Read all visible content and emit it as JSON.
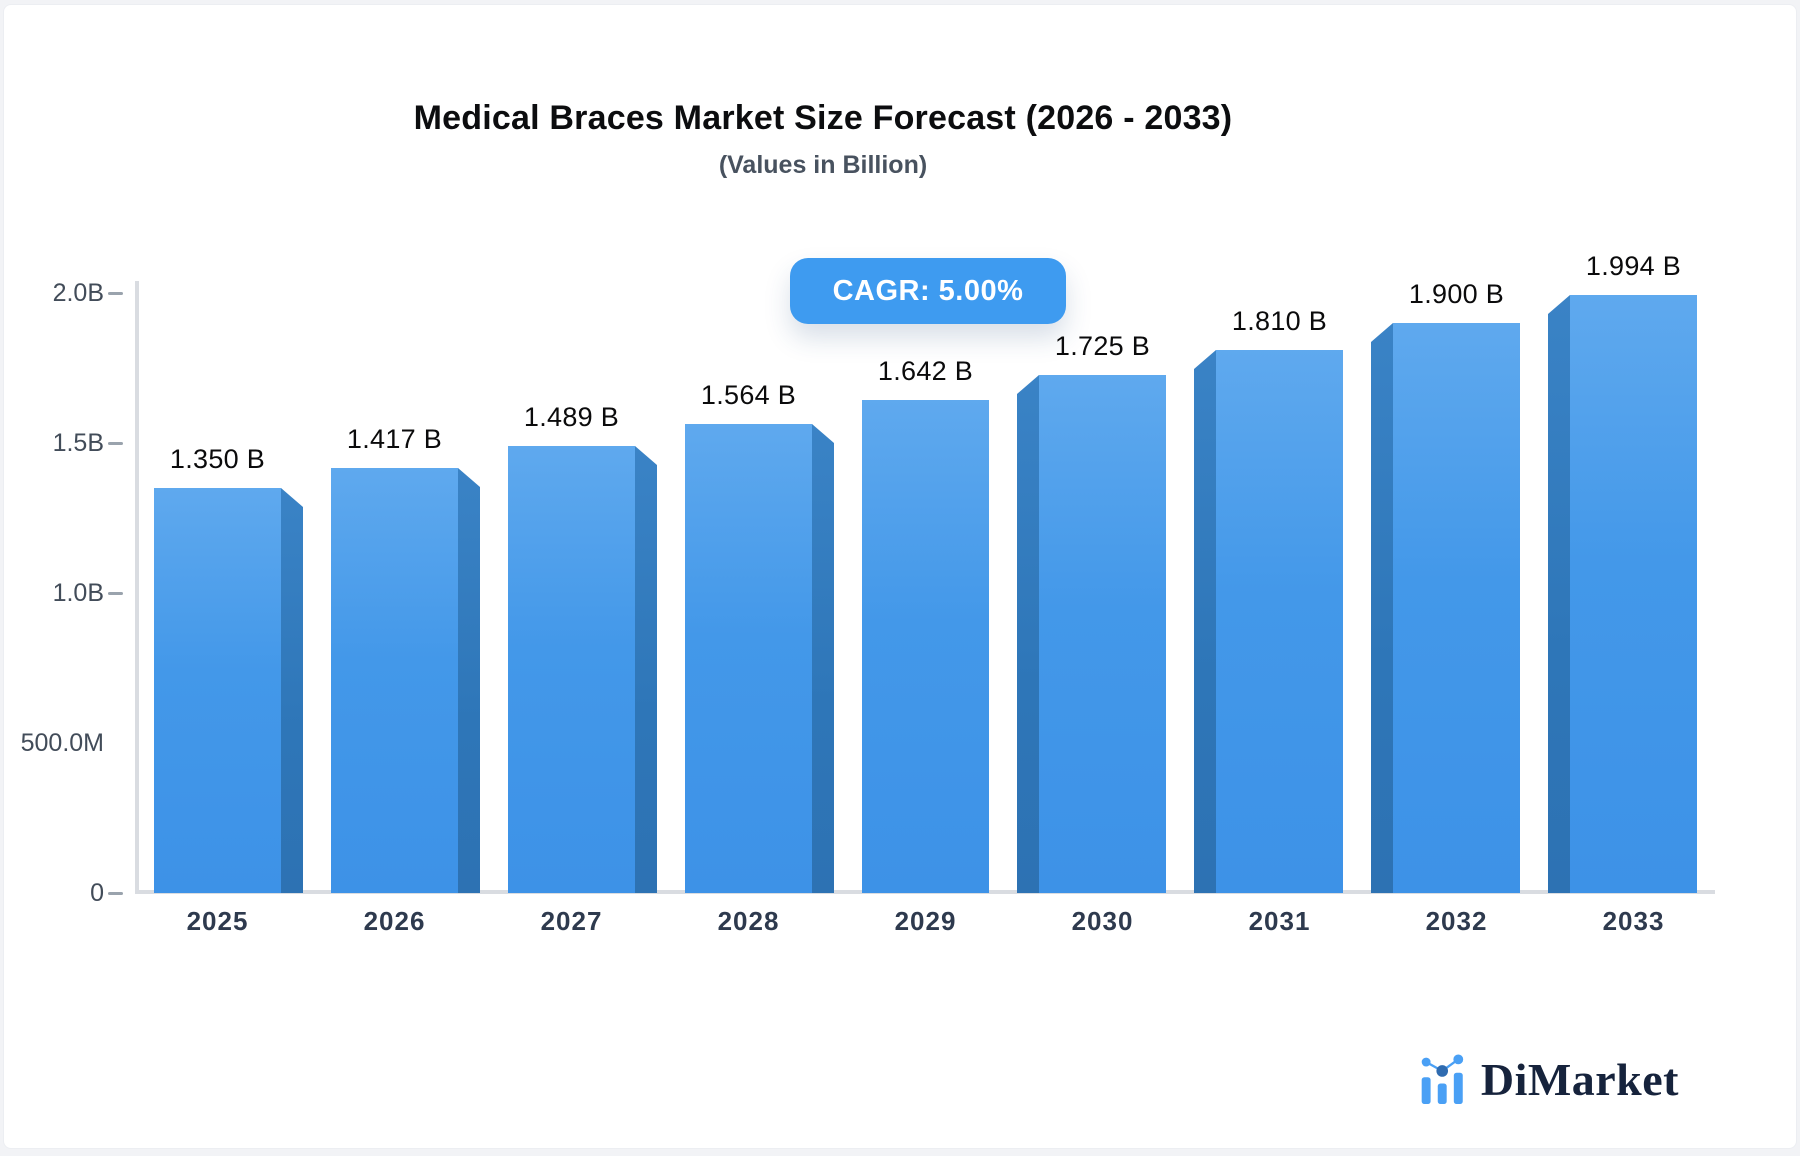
{
  "header": {
    "title": "Medical Braces Market Size Forecast (2026 - 2033)",
    "subtitle": "(Values in Billion)"
  },
  "chart_data": {
    "type": "bar",
    "title": "Medical Braces Market Size Forecast (2026 - 2033)",
    "subtitle": "(Values in Billion)",
    "cagr_label": "CAGR: 5.00%",
    "categories": [
      "2025",
      "2026",
      "2027",
      "2028",
      "2029",
      "2030",
      "2031",
      "2032",
      "2033"
    ],
    "values": [
      1.35,
      1.417,
      1.489,
      1.564,
      1.642,
      1.725,
      1.81,
      1.9,
      1.994
    ],
    "value_labels": [
      "1.350 B",
      "1.417 B",
      "1.489 B",
      "1.564 B",
      "1.642 B",
      "1.725 B",
      "1.810 B",
      "1.900 B",
      "1.994 B"
    ],
    "xlabel": "",
    "ylabel": "",
    "ylim": [
      0,
      2.0
    ],
    "yticks": [
      {
        "label": "0",
        "value": 0,
        "tick_mark": true
      },
      {
        "label": "500.0M",
        "value": 0.5,
        "tick_mark": false
      },
      {
        "label": "1.0B",
        "value": 1.0,
        "tick_mark": true
      },
      {
        "label": "1.5B",
        "value": 1.5,
        "tick_mark": true
      },
      {
        "label": "2.0B",
        "value": 2.0,
        "tick_mark": true
      }
    ],
    "grid": false,
    "legend": "none",
    "bar_style": "3d-perspective-bevel",
    "colors": {
      "bar_top": "#5fa9ee",
      "bar_bottom": "#3d92e7",
      "bar_side": "#2e76b8",
      "badge_background": "#3e9bf0",
      "badge_text": "#ffffff",
      "axis_line": "#d9dce1",
      "tick_mark": "#9aa3ad",
      "tick_label": "#424c59",
      "year_label": "#2e3a4e",
      "value_label": "#0b0b0c"
    }
  },
  "branding": {
    "logo_text": "DiMarket",
    "logo_icon": "bar-line-chart-icon",
    "logo_text_color": "#16233c",
    "logo_icon_blue": "#4aa0f5",
    "logo_icon_dark_dot": "#2f6bb0"
  }
}
